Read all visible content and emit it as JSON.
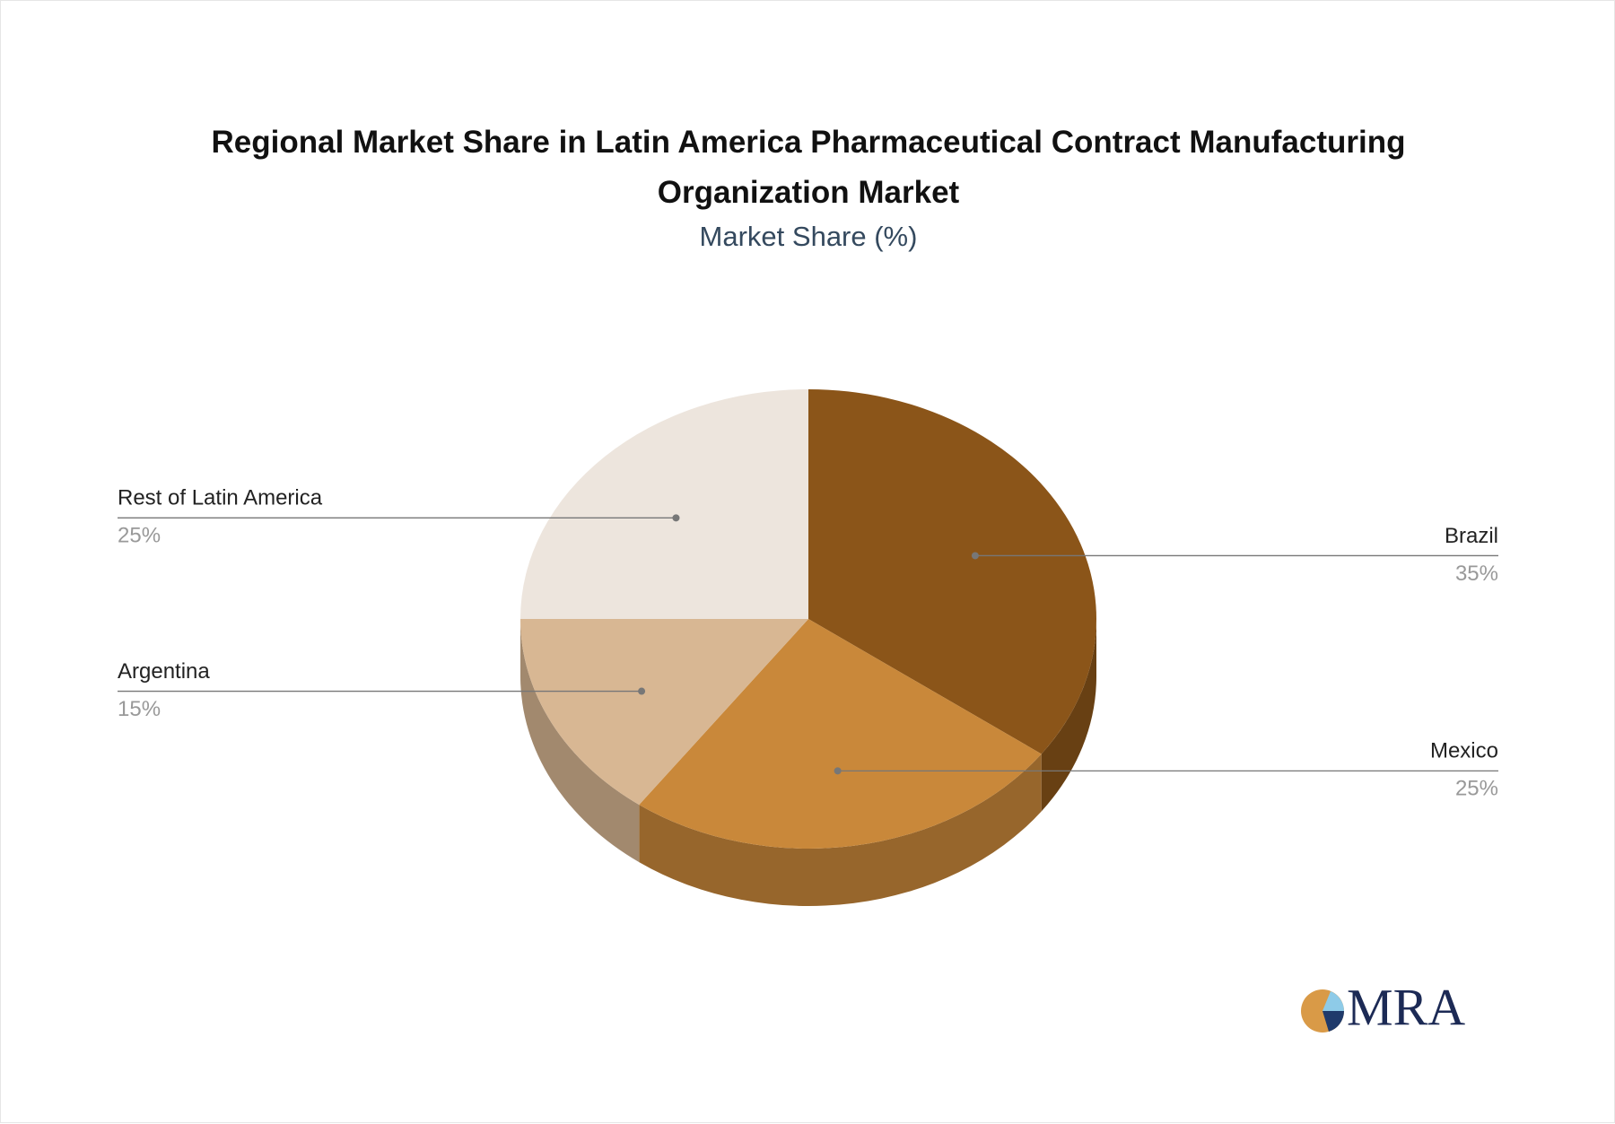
{
  "chart_data": {
    "type": "pie3d",
    "title": "Regional Market Share in Latin America Pharmaceutical Contract Manufacturing Organization Market",
    "subtitle": "Market Share (%)",
    "categories": [
      "Brazil",
      "Mexico",
      "Argentina",
      "Rest of Latin America"
    ],
    "values": [
      35,
      25,
      15,
      25
    ],
    "value_labels": [
      "35%",
      "25%",
      "15%",
      "25%"
    ],
    "colors": [
      "#8b5519",
      "#c9883a",
      "#d8b793",
      "#ede5dd"
    ]
  },
  "logo": "MRA"
}
